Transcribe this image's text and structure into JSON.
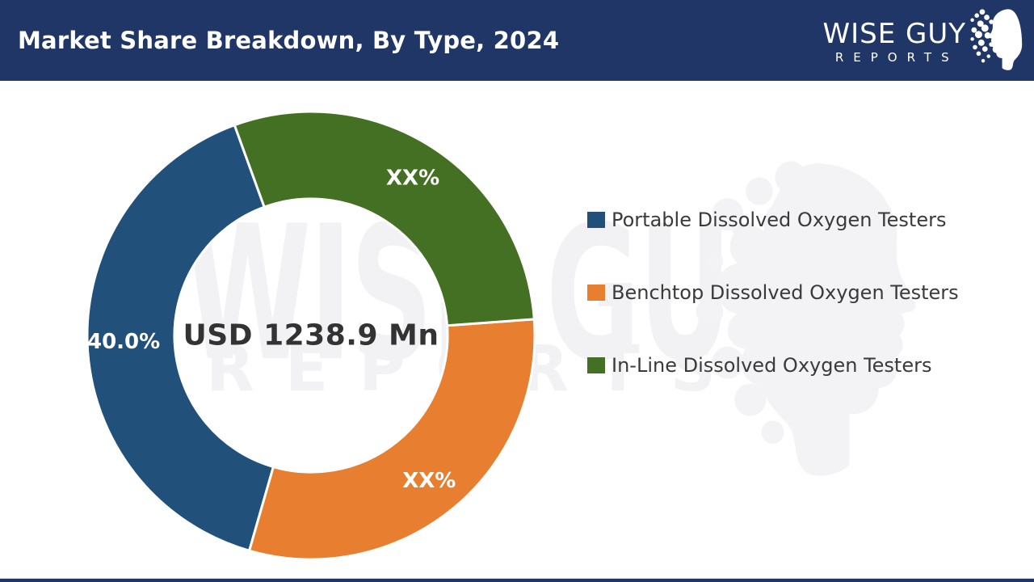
{
  "header": {
    "title": "Market Share Breakdown, By Type, 2024"
  },
  "logo": {
    "name": "WISE GUY",
    "sub": "REPORTS"
  },
  "watermark": {
    "name": "WISE GUY",
    "sub": "REPORTS"
  },
  "chart_data": {
    "type": "pie",
    "subtype": "donut",
    "title": "Market Share Breakdown, By Type, 2024",
    "center_label": "USD 1238.9 Mn",
    "start_angle_deg": 110,
    "direction": "counterclockwise",
    "donut_hole_ratio": 0.61,
    "legend_position": "right",
    "slices": [
      {
        "label": "Portable Dissolved Oxygen Testers",
        "value_pct": 40.0,
        "display_pct": "40.0%",
        "color": "#21517A"
      },
      {
        "label": "Benchtop Dissolved Oxygen Testers",
        "value_pct": 30.6,
        "display_pct": "XX%",
        "color": "#E87E2F"
      },
      {
        "label": "In-Line Dissolved Oxygen Testers",
        "value_pct": 29.4,
        "display_pct": "XX%",
        "color": "#437022"
      }
    ],
    "colors": {
      "header_bar": "#203666",
      "center_text": "#333333",
      "slice_label_text": "#ffffff"
    }
  }
}
